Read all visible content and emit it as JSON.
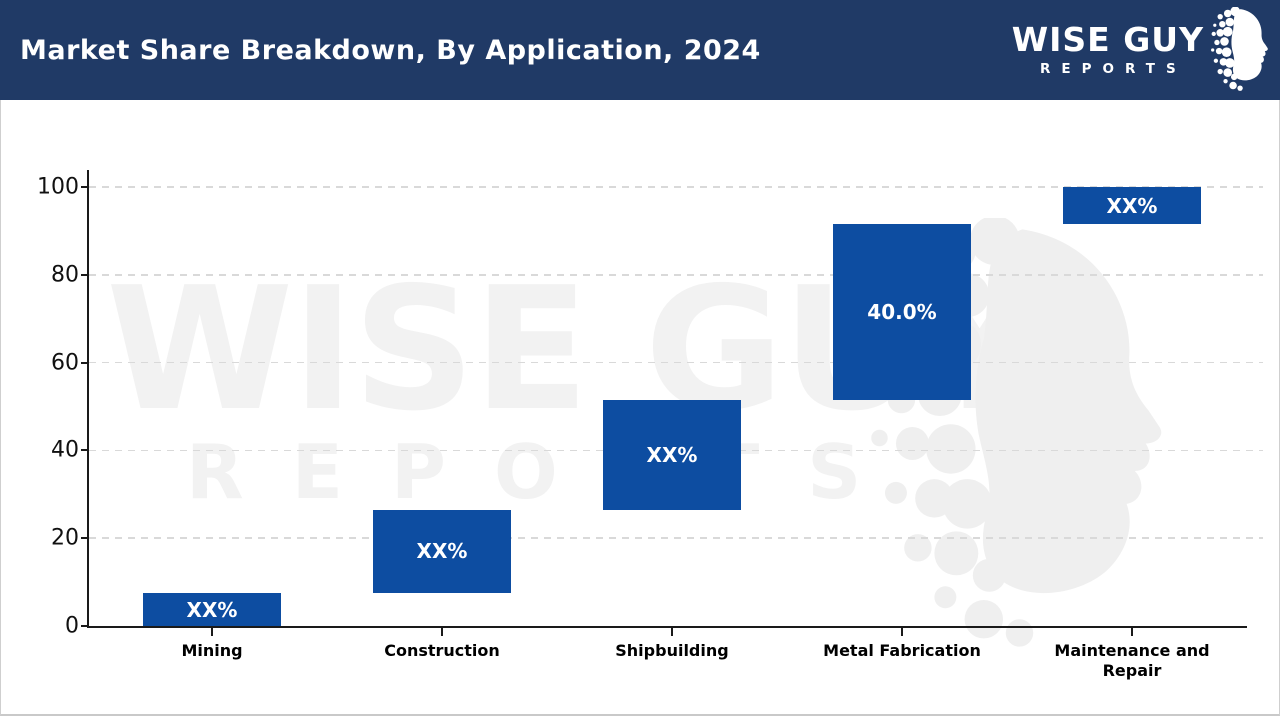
{
  "header": {
    "title": "Market Share Breakdown, By Application, 2024",
    "logo_line1": "WISE GUY",
    "logo_line2": "REPORTS"
  },
  "watermark": {
    "line1": "WISE GUY",
    "line2": "REPORTS"
  },
  "colors": {
    "header_bg": "#203a66",
    "bar": "#0d4da1",
    "bar_label": "#ffffff",
    "grid": "#d9d9d9",
    "axis": "#1a1a1a",
    "watermark": "#f2f2f2"
  },
  "chart_data": {
    "type": "bar",
    "subtype": "waterfall (floating stacked-range bars)",
    "title": "Market Share Breakdown, By Application, 2024",
    "categories": [
      "Mining",
      "Construction",
      "Shipbuilding",
      "Metal Fabrication",
      "Maintenance and Repair"
    ],
    "segments": [
      {
        "category": "Mining",
        "start": 0,
        "end": 7.5,
        "value_pct": 7.5,
        "label": "XX%"
      },
      {
        "category": "Construction",
        "start": 7.5,
        "end": 26.5,
        "value_pct": 19.0,
        "label": "XX%"
      },
      {
        "category": "Shipbuilding",
        "start": 26.5,
        "end": 51.5,
        "value_pct": 25.0,
        "label": "XX%"
      },
      {
        "category": "Metal Fabrication",
        "start": 51.5,
        "end": 91.5,
        "value_pct": 40.0,
        "label": "40.0%"
      },
      {
        "category": "Maintenance and Repair",
        "start": 91.5,
        "end": 100,
        "value_pct": 8.5,
        "label": "XX%"
      }
    ],
    "xlabel": "",
    "ylabel": "",
    "ylim": [
      0,
      104
    ],
    "yticks": [
      0,
      20,
      40,
      60,
      80,
      100
    ],
    "grid": "horizontal dashed",
    "legend": "none",
    "bar_color": "#0d4da1",
    "label_color": "#ffffff"
  }
}
